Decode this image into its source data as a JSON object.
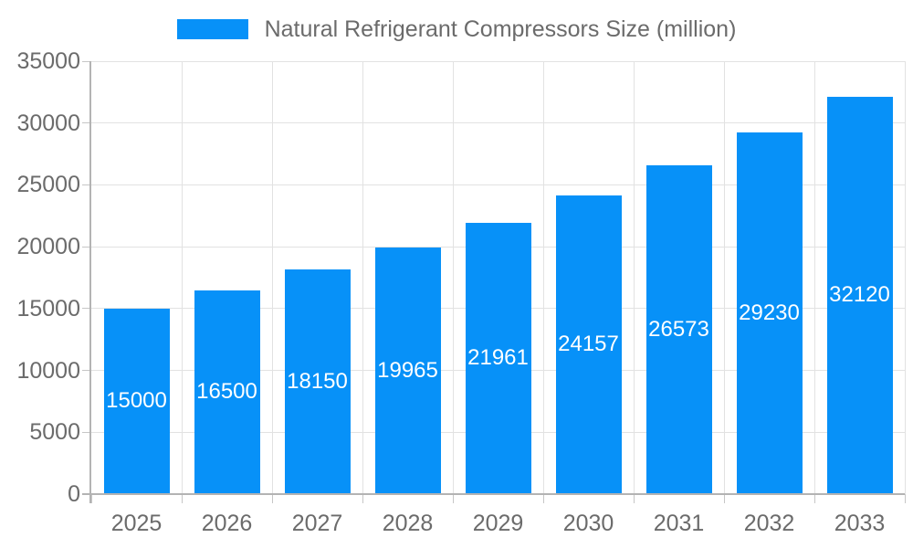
{
  "legend": {
    "position": "top"
  },
  "colors": {
    "bar": "#0791f8",
    "bar_label": "#ffffff",
    "axis_text": "#6b6b6b",
    "grid_line": "#e2e2e2",
    "axis_line": "#b3b3b3",
    "tick_mark": "#c6c6c6",
    "background": "#ffffff"
  },
  "chart_data": {
    "type": "bar",
    "title": "Natural Refrigerant Compressors Size (million)",
    "categories": [
      "2025",
      "2026",
      "2027",
      "2028",
      "2029",
      "2030",
      "2031",
      "2032",
      "2033"
    ],
    "values": [
      15000,
      16500,
      18150,
      19965,
      21961,
      24157,
      26573,
      29230,
      32120
    ],
    "series": [
      {
        "name": "Natural Refrigerant Compressors Size (million)",
        "values": [
          15000,
          16500,
          18150,
          19965,
          21961,
          24157,
          26573,
          29230,
          32120
        ]
      }
    ],
    "data_labels": [
      "15000",
      "16500",
      "18150",
      "19965",
      "21961",
      "24157",
      "26573",
      "29230",
      "32120"
    ],
    "xlabel": "",
    "ylabel": "",
    "ylim": [
      0,
      35000
    ],
    "yticks": [
      0,
      5000,
      10000,
      15000,
      20000,
      25000,
      30000,
      35000
    ],
    "ytick_labels": [
      "0",
      "5000",
      "10000",
      "15000",
      "20000",
      "25000",
      "30000",
      "35000"
    ],
    "grid": true,
    "legend_position": "top",
    "data_label_position": "inside-center"
  }
}
